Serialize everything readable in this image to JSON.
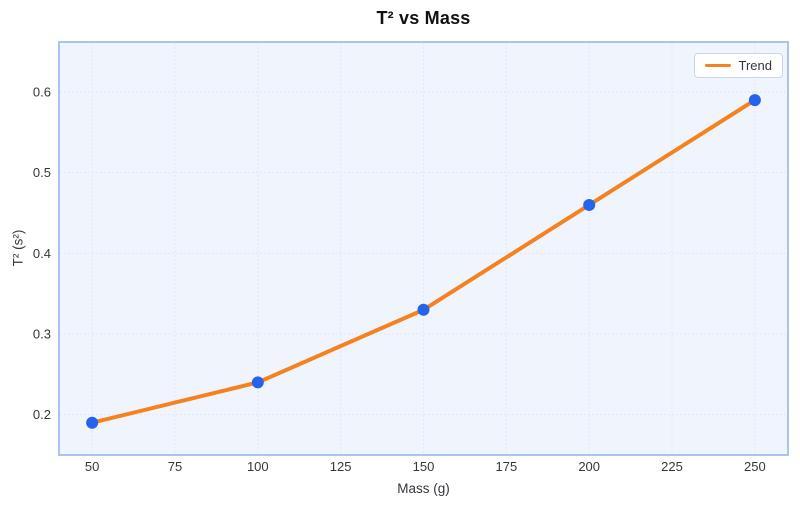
{
  "chart_data": {
    "type": "line",
    "title": "T² vs Mass",
    "xlabel": "Mass (g)",
    "ylabel": "T² (s²)",
    "x": [
      50,
      100,
      150,
      200,
      250
    ],
    "series": [
      {
        "name": "Trend",
        "values": [
          0.19,
          0.24,
          0.33,
          0.46,
          0.59
        ]
      }
    ],
    "xticks": [
      50,
      75,
      100,
      125,
      150,
      175,
      200,
      225,
      250
    ],
    "yticks": [
      0.2,
      0.3,
      0.4,
      0.5,
      0.6
    ],
    "xlim": [
      40,
      260
    ],
    "ylim": [
      0.15,
      0.662
    ],
    "grid": "dotted",
    "legend_position": "top-right"
  },
  "style": {
    "line_color": "#f5821f",
    "marker_color": "#2563eb",
    "plot_bg": "#f0f4fc",
    "plot_border": "#a9c4f0",
    "grid_color": "#dde4f2",
    "tick_text_color": "#33373d",
    "title_color": "#111111",
    "legend_border": "#c9d5ec"
  }
}
